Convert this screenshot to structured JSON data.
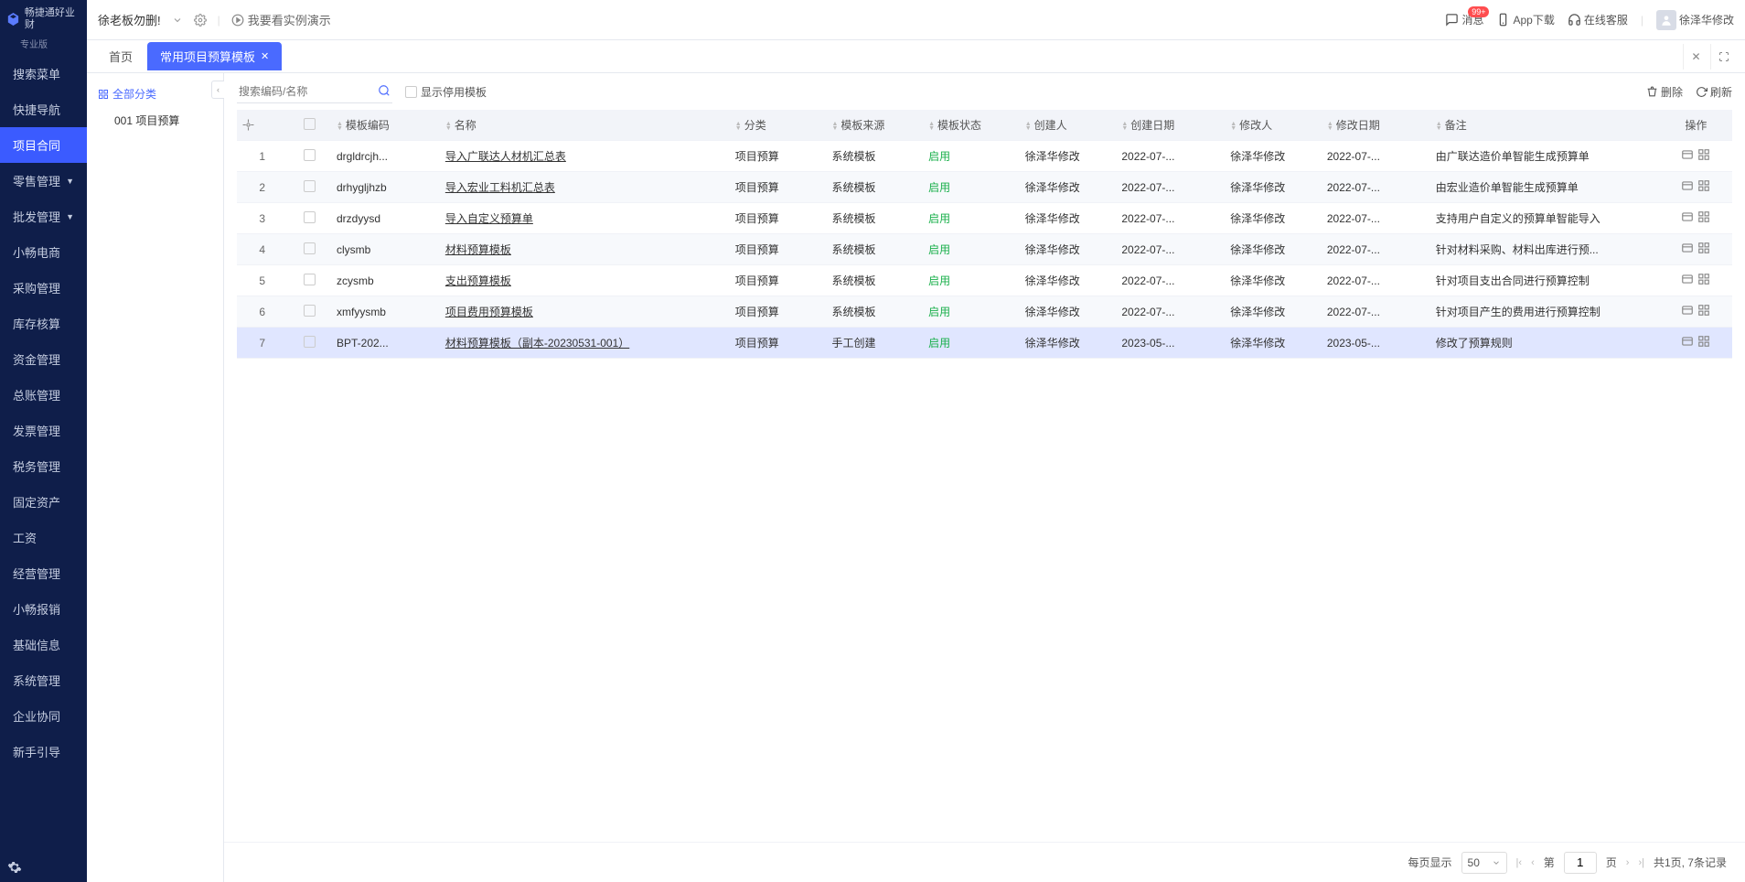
{
  "brand": {
    "name": "畅捷通好业财",
    "edition": "专业版"
  },
  "sidebar": {
    "items": [
      {
        "label": "搜索菜单",
        "arrow": false
      },
      {
        "label": "快捷导航",
        "arrow": false
      },
      {
        "label": "项目合同",
        "arrow": false,
        "active": true
      },
      {
        "label": "零售管理",
        "arrow": true
      },
      {
        "label": "批发管理",
        "arrow": true
      },
      {
        "label": "小畅电商",
        "arrow": false
      },
      {
        "label": "采购管理",
        "arrow": false
      },
      {
        "label": "库存核算",
        "arrow": false
      },
      {
        "label": "资金管理",
        "arrow": false
      },
      {
        "label": "总账管理",
        "arrow": false
      },
      {
        "label": "发票管理",
        "arrow": false
      },
      {
        "label": "税务管理",
        "arrow": false
      },
      {
        "label": "固定资产",
        "arrow": false
      },
      {
        "label": "工资",
        "arrow": false
      },
      {
        "label": "经营管理",
        "arrow": false
      },
      {
        "label": "小畅报销",
        "arrow": false
      },
      {
        "label": "基础信息",
        "arrow": false
      },
      {
        "label": "系统管理",
        "arrow": false
      },
      {
        "label": "企业协同",
        "arrow": false
      },
      {
        "label": "新手引导",
        "arrow": false
      }
    ]
  },
  "topbar": {
    "title": "徐老板勿删!",
    "demo_link": "我要看实例演示",
    "message": "消息",
    "badge": "99+",
    "app_download": "App下载",
    "customer_service": "在线客服",
    "username": "徐泽华修改"
  },
  "tabs": {
    "home": "首页",
    "active": "常用项目预算模板"
  },
  "category": {
    "all": "全部分类",
    "item": "001 项目预算"
  },
  "toolbar": {
    "search_placeholder": "搜索编码/名称",
    "show_disabled": "显示停用模板",
    "delete": "删除",
    "refresh": "刷新"
  },
  "table": {
    "columns": {
      "code": "模板编码",
      "name": "名称",
      "category": "分类",
      "source": "模板来源",
      "status": "模板状态",
      "creator": "创建人",
      "create_date": "创建日期",
      "modifier": "修改人",
      "modify_date": "修改日期",
      "remark": "备注",
      "action": "操作"
    },
    "rows": [
      {
        "idx": "1",
        "code": "drgldrcjh...",
        "name": "导入广联达人材机汇总表",
        "cat": "项目预算",
        "src": "系统模板",
        "status": "启用",
        "creator": "徐泽华修改",
        "cdate": "2022-07-...",
        "modifier": "徐泽华修改",
        "mdate": "2022-07-...",
        "remark": "由广联达造价单智能生成预算单"
      },
      {
        "idx": "2",
        "code": "drhygljhzb",
        "name": "导入宏业工料机汇总表",
        "cat": "项目预算",
        "src": "系统模板",
        "status": "启用",
        "creator": "徐泽华修改",
        "cdate": "2022-07-...",
        "modifier": "徐泽华修改",
        "mdate": "2022-07-...",
        "remark": "由宏业造价单智能生成预算单"
      },
      {
        "idx": "3",
        "code": "drzdyysd",
        "name": "导入自定义预算单",
        "cat": "项目预算",
        "src": "系统模板",
        "status": "启用",
        "creator": "徐泽华修改",
        "cdate": "2022-07-...",
        "modifier": "徐泽华修改",
        "mdate": "2022-07-...",
        "remark": "支持用户自定义的预算单智能导入"
      },
      {
        "idx": "4",
        "code": "clysmb",
        "name": "材料预算模板",
        "cat": "项目预算",
        "src": "系统模板",
        "status": "启用",
        "creator": "徐泽华修改",
        "cdate": "2022-07-...",
        "modifier": "徐泽华修改",
        "mdate": "2022-07-...",
        "remark": "针对材料采购、材料出库进行预..."
      },
      {
        "idx": "5",
        "code": "zcysmb",
        "name": "支出预算模板",
        "cat": "项目预算",
        "src": "系统模板",
        "status": "启用",
        "creator": "徐泽华修改",
        "cdate": "2022-07-...",
        "modifier": "徐泽华修改",
        "mdate": "2022-07-...",
        "remark": "针对项目支出合同进行预算控制"
      },
      {
        "idx": "6",
        "code": "xmfyysmb",
        "name": "项目费用预算模板",
        "cat": "项目预算",
        "src": "系统模板",
        "status": "启用",
        "creator": "徐泽华修改",
        "cdate": "2022-07-...",
        "modifier": "徐泽华修改",
        "mdate": "2022-07-...",
        "remark": "针对项目产生的费用进行预算控制"
      },
      {
        "idx": "7",
        "code": "BPT-202...",
        "name": "材料预算模板（副本-20230531-001）",
        "cat": "项目预算",
        "src": "手工创建",
        "status": "启用",
        "creator": "徐泽华修改",
        "cdate": "2023-05-...",
        "modifier": "徐泽华修改",
        "mdate": "2023-05-...",
        "remark": "修改了预算规则",
        "hovered": true
      }
    ]
  },
  "pager": {
    "per_page_label": "每页显示",
    "per_page_value": "50",
    "page_prefix": "第",
    "page_value": "1",
    "page_suffix": "页",
    "total": "共1页, 7条记录"
  },
  "colors": {
    "primary": "#4a6aff",
    "sidebar_bg": "#0f1e4a",
    "enabled": "#1bb04c",
    "badge": "#ff4d4f"
  }
}
